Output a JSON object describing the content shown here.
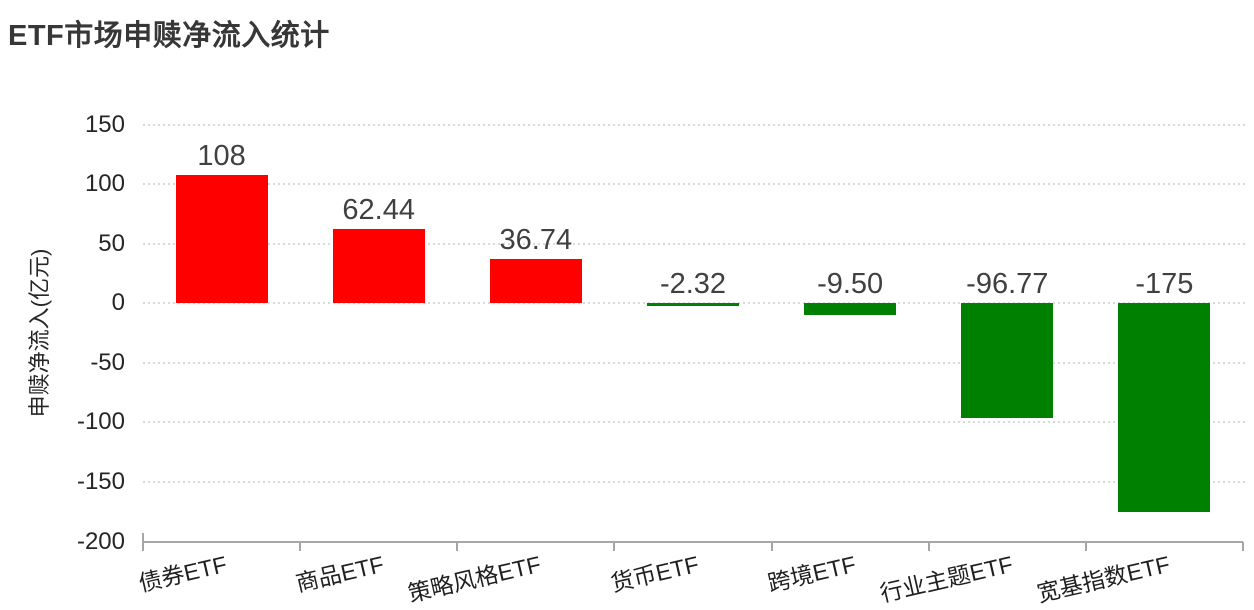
{
  "chart_data": {
    "type": "bar",
    "title": "ETF市场申赎净流入统计",
    "ylabel": "申赎净流入(亿元)",
    "xlabel": "",
    "categories": [
      "债券ETF",
      "商品ETF",
      "策略风格ETF",
      "货币ETF",
      "跨境ETF",
      "行业主题ETF",
      "宽基指数ETF"
    ],
    "values": [
      108,
      62.44,
      36.74,
      -2.32,
      -9.5,
      -96.77,
      -175
    ],
    "value_labels": [
      "108",
      "62.44",
      "36.74",
      "-2.32",
      "-9.50",
      "-96.77",
      "-175"
    ],
    "ylim": [
      -200,
      150
    ],
    "yticks": [
      150,
      100,
      50,
      0,
      -50,
      -100,
      -150,
      -200
    ],
    "grid": "horizontal-dotted",
    "legend": "none",
    "colors": {
      "positive_bar": "#ff0000",
      "negative_bar": "#008000",
      "axis_line": "#a6a6a6",
      "gridline": "#d8d8e0",
      "value_label": "#404040",
      "tick_label": "#262626",
      "title": "#373737"
    }
  }
}
